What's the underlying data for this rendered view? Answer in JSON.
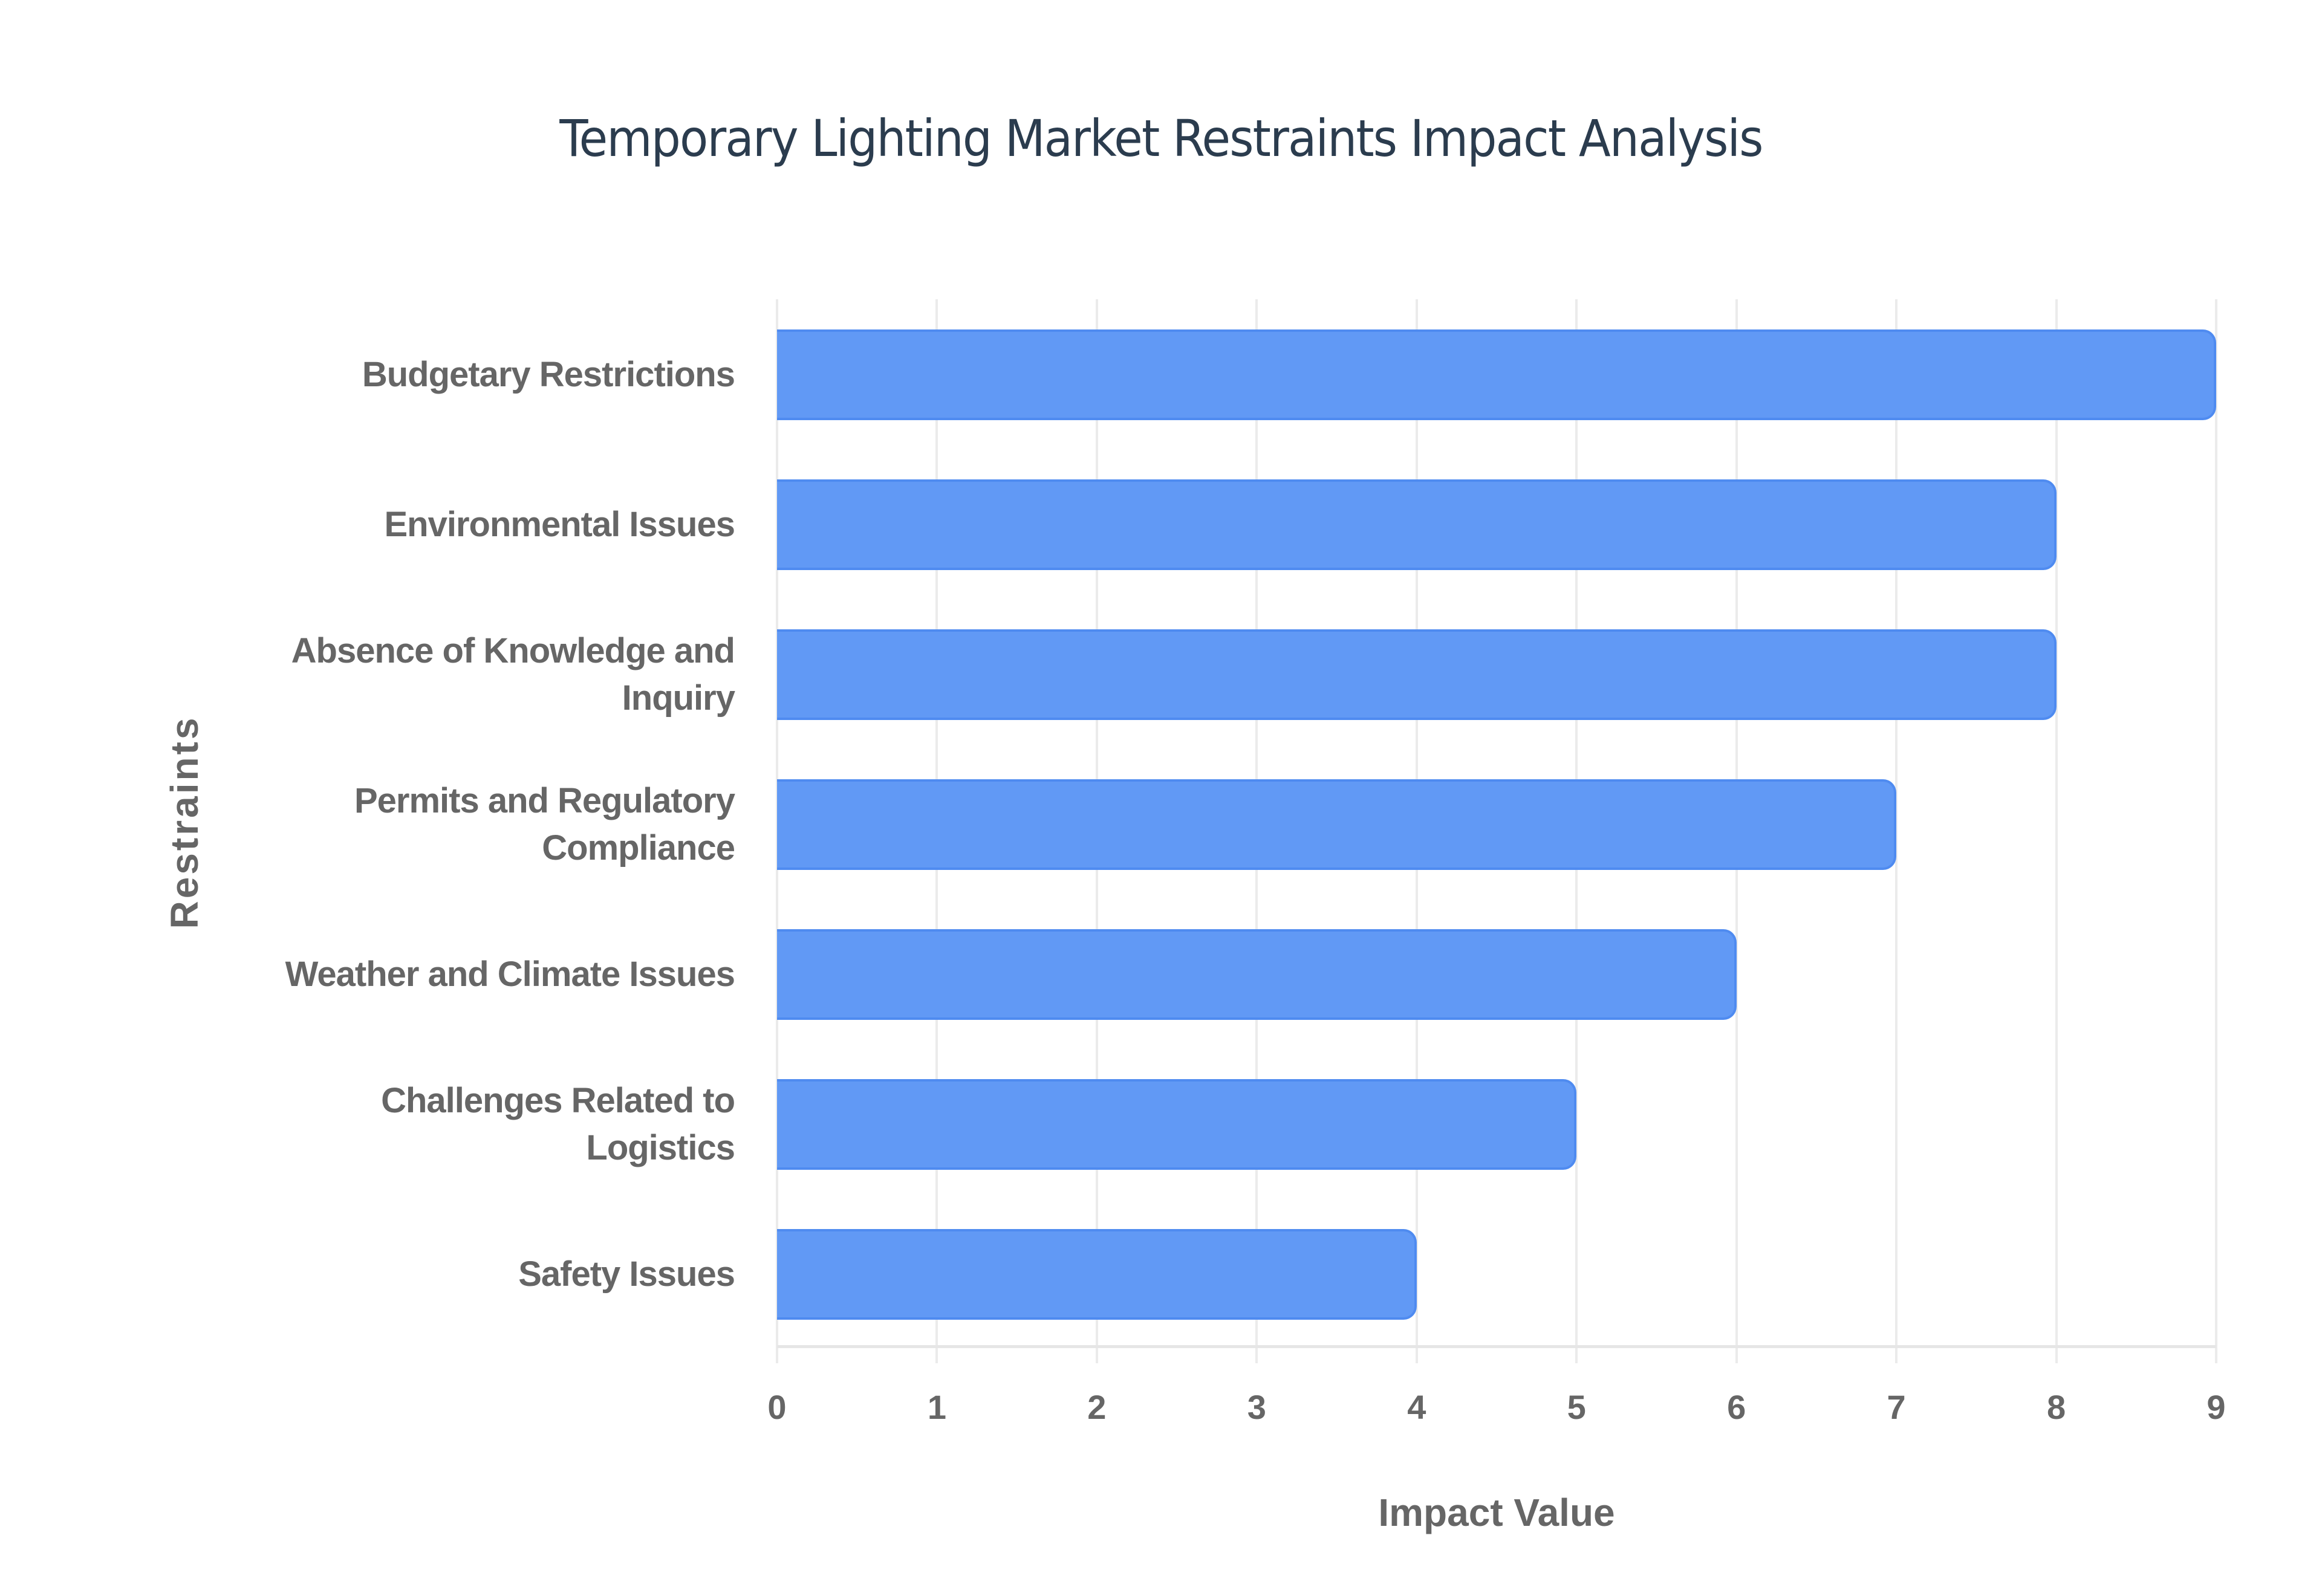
{
  "chart_data": {
    "type": "bar",
    "orientation": "horizontal",
    "title": "Temporary Lighting Market Restraints Impact Analysis",
    "xlabel": "Impact Value",
    "ylabel": "Restraints",
    "categories": [
      "Budgetary Restrictions",
      "Environmental Issues",
      "Absence of Knowledge and Inquiry",
      "Permits and Regulatory Compliance",
      "Weather and Climate Issues",
      "Challenges Related to Logistics",
      "Safety Issues"
    ],
    "values": [
      9,
      8,
      8,
      7,
      6,
      5,
      4
    ],
    "xlim": [
      0,
      9
    ],
    "xticks": [
      "0",
      "1",
      "2",
      "3",
      "4",
      "5",
      "6",
      "7",
      "8",
      "9"
    ],
    "grid": true,
    "legend": "none",
    "bar_color": "#6199f5"
  },
  "labels": {
    "cat0": [
      "Budgetary Restrictions"
    ],
    "cat1": [
      "Environmental Issues"
    ],
    "cat2": [
      "Absence of Knowledge and",
      "Inquiry"
    ],
    "cat3": [
      "Permits and Regulatory",
      "Compliance"
    ],
    "cat4": [
      "Weather and Climate Issues"
    ],
    "cat5": [
      "Challenges Related to",
      "Logistics"
    ],
    "cat6": [
      "Safety Issues"
    ]
  }
}
